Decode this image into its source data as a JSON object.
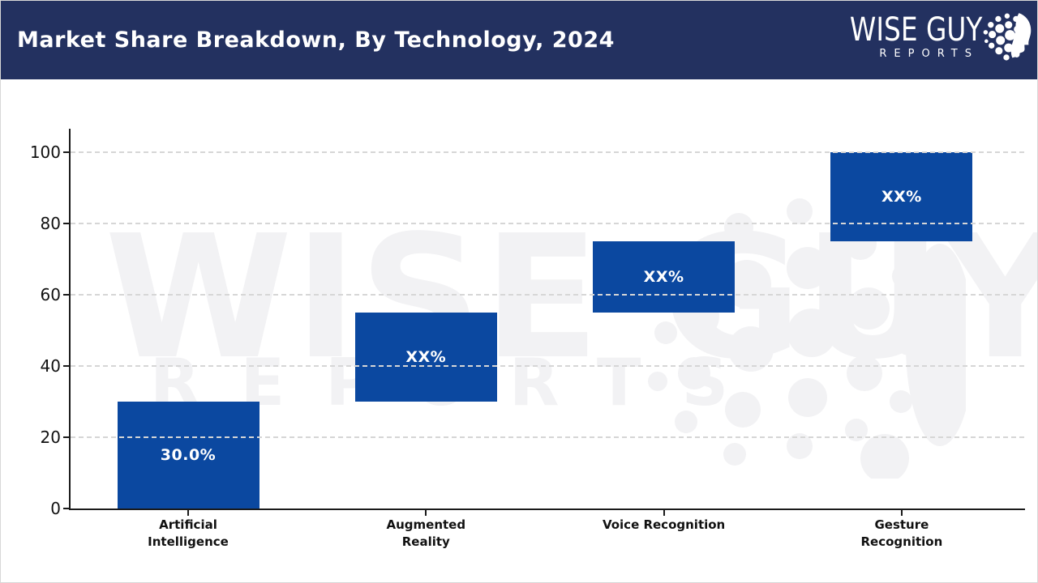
{
  "header": {
    "title": "Market Share Breakdown, By Technology, 2024",
    "logo": {
      "line1": "WISE GUY",
      "line2": "REPORTS"
    }
  },
  "watermark": {
    "line1": "WISE GUY",
    "line2": "REPORTS"
  },
  "colors": {
    "header_bg": "#233160",
    "bar": "#0B48A0",
    "grid": "#D6D6D6",
    "axis": "#1A1A1A",
    "title_text": "#FFFFFF",
    "bar_label_text": "#FFFFFF",
    "watermark": "#F2F2F4"
  },
  "chart_data": {
    "type": "bar",
    "variant": "waterfall",
    "title": "Market Share Breakdown, By Technology, 2024",
    "categories": [
      "Artificial Intelligence",
      "Augmented Reality",
      "Voice Recognition",
      "Gesture Recognition"
    ],
    "bars": [
      {
        "category": "Artificial Intelligence",
        "lines": [
          "Artificial",
          "Intelligence"
        ],
        "start": 0,
        "end": 30,
        "label": "30.0%"
      },
      {
        "category": "Augmented Reality",
        "lines": [
          "Augmented Reality"
        ],
        "start": 30,
        "end": 55,
        "label": "XX%"
      },
      {
        "category": "Voice Recognition",
        "lines": [
          "Voice Recognition"
        ],
        "start": 55,
        "end": 75,
        "label": "XX%"
      },
      {
        "category": "Gesture Recognition",
        "lines": [
          "Gesture",
          "Recognition"
        ],
        "start": 75,
        "end": 100,
        "label": "XX%"
      }
    ],
    "ylim": [
      0,
      100
    ],
    "yticks": [
      0,
      20,
      40,
      60,
      80,
      100
    ],
    "xlabel": "",
    "ylabel": "",
    "grid": "horizontal-dashed",
    "legend_position": "none",
    "bar_color": "#0B48A0"
  }
}
